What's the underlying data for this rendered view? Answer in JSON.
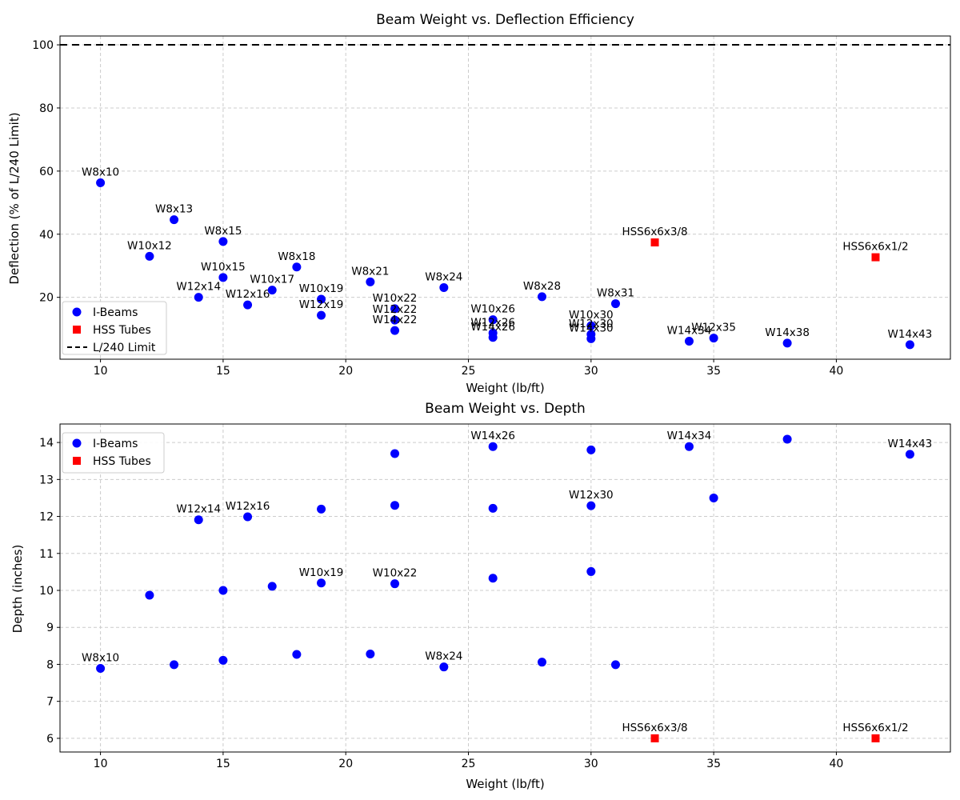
{
  "figure": {
    "background": "#ffffff",
    "colors": {
      "ibeam": "#0000ff",
      "hss": "#ff0000",
      "limit_line": "#000000",
      "grid": "#cccccc"
    }
  },
  "chart_data": [
    {
      "type": "scatter",
      "title": "Beam Weight vs. Deflection Efficiency",
      "xlabel": "Weight (lb/ft)",
      "ylabel": "Deflection (% of L/240 Limit)",
      "xlim": [
        8.35,
        44.65
      ],
      "ylim": [
        0.4,
        102.8
      ],
      "xticks": [
        10,
        15,
        20,
        25,
        30,
        35,
        40
      ],
      "yticks": [
        20,
        40,
        60,
        80,
        100
      ],
      "grid": true,
      "hline": {
        "y": 100,
        "label": "L/240 Limit",
        "color": "#000000",
        "style": "dashed"
      },
      "legend": {
        "position": "lower-left",
        "entries": [
          {
            "label": "I-Beams",
            "marker": "circle",
            "color": "#0000ff"
          },
          {
            "label": "HSS Tubes",
            "marker": "square",
            "color": "#ff0000"
          },
          {
            "label": "L/240 Limit",
            "marker": "dashed-line",
            "color": "#000000"
          }
        ]
      },
      "series": [
        {
          "name": "I-Beams",
          "marker": "circle",
          "color": "#0000ff",
          "points": [
            {
              "label": "W8x10",
              "x": 10,
              "y": 56.3,
              "annotated": true
            },
            {
              "label": "W10x12",
              "x": 12,
              "y": 33.0,
              "annotated": true
            },
            {
              "label": "W8x13",
              "x": 13,
              "y": 44.6,
              "annotated": true
            },
            {
              "label": "W12x14",
              "x": 14,
              "y": 20.0,
              "annotated": true
            },
            {
              "label": "W8x15",
              "x": 15,
              "y": 37.7,
              "annotated": true
            },
            {
              "label": "W10x15",
              "x": 15,
              "y": 26.3,
              "annotated": true
            },
            {
              "label": "W12x16",
              "x": 16,
              "y": 17.6,
              "annotated": true
            },
            {
              "label": "W10x17",
              "x": 17,
              "y": 22.3,
              "annotated": true
            },
            {
              "label": "W8x18",
              "x": 18,
              "y": 29.6,
              "annotated": true
            },
            {
              "label": "W10x19",
              "x": 19,
              "y": 19.4,
              "annotated": true
            },
            {
              "label": "W12x19",
              "x": 19,
              "y": 14.3,
              "annotated": true
            },
            {
              "label": "W8x21",
              "x": 21,
              "y": 24.9,
              "annotated": true
            },
            {
              "label": "W10x22",
              "x": 22,
              "y": 16.4,
              "annotated": true
            },
            {
              "label": "W12x22",
              "x": 22,
              "y": 12.8,
              "annotated": true
            },
            {
              "label": "W14x22",
              "x": 22,
              "y": 9.5,
              "annotated": true
            },
            {
              "label": "W8x24",
              "x": 24,
              "y": 23.1,
              "annotated": true
            },
            {
              "label": "W10x26",
              "x": 26,
              "y": 12.9,
              "annotated": true
            },
            {
              "label": "W12x26",
              "x": 26,
              "y": 8.7,
              "annotated": true
            },
            {
              "label": "W14x26",
              "x": 26,
              "y": 7.3,
              "annotated": true
            },
            {
              "label": "W8x28",
              "x": 28,
              "y": 20.2,
              "annotated": true
            },
            {
              "label": "W10x30",
              "x": 30,
              "y": 11.0,
              "annotated": true
            },
            {
              "label": "W12x30",
              "x": 30,
              "y": 8.3,
              "annotated": true
            },
            {
              "label": "W14x30",
              "x": 30,
              "y": 6.9,
              "annotated": true
            },
            {
              "label": "W8x31",
              "x": 31,
              "y": 18.0,
              "annotated": true
            },
            {
              "label": "W14x34",
              "x": 34,
              "y": 6.1,
              "annotated": true
            },
            {
              "label": "W12x35",
              "x": 35,
              "y": 7.1,
              "annotated": true
            },
            {
              "label": "W14x38",
              "x": 38,
              "y": 5.5,
              "annotated": true
            },
            {
              "label": "W14x43",
              "x": 43,
              "y": 5.0,
              "annotated": true
            }
          ]
        },
        {
          "name": "HSS Tubes",
          "marker": "square",
          "color": "#ff0000",
          "points": [
            {
              "label": "HSS6x6x3/8",
              "x": 32.6,
              "y": 37.4,
              "annotated": true
            },
            {
              "label": "HSS6x6x1/2",
              "x": 41.6,
              "y": 32.7,
              "annotated": true
            }
          ]
        }
      ]
    },
    {
      "type": "scatter",
      "title": "Beam Weight vs. Depth",
      "xlabel": "Weight (lb/ft)",
      "ylabel": "Depth (inches)",
      "xlim": [
        8.35,
        44.65
      ],
      "ylim": [
        5.63,
        14.5
      ],
      "xticks": [
        10,
        15,
        20,
        25,
        30,
        35,
        40
      ],
      "yticks": [
        6,
        7,
        8,
        9,
        10,
        11,
        12,
        13,
        14
      ],
      "grid": true,
      "hline": null,
      "legend": {
        "position": "upper-left",
        "entries": [
          {
            "label": "I-Beams",
            "marker": "circle",
            "color": "#0000ff"
          },
          {
            "label": "HSS Tubes",
            "marker": "square",
            "color": "#ff0000"
          }
        ]
      },
      "series": [
        {
          "name": "I-Beams",
          "marker": "circle",
          "color": "#0000ff",
          "points": [
            {
              "label": "W8x10",
              "x": 10,
              "y": 7.89,
              "annotated": true
            },
            {
              "label": "W10x12",
              "x": 12,
              "y": 9.87,
              "annotated": false
            },
            {
              "label": "W8x13",
              "x": 13,
              "y": 7.99,
              "annotated": false
            },
            {
              "label": "W12x14",
              "x": 14,
              "y": 11.91,
              "annotated": true
            },
            {
              "label": "W8x15",
              "x": 15,
              "y": 8.11,
              "annotated": false
            },
            {
              "label": "W10x15",
              "x": 15,
              "y": 10.0,
              "annotated": false
            },
            {
              "label": "W12x16",
              "x": 16,
              "y": 11.99,
              "annotated": true
            },
            {
              "label": "W10x17",
              "x": 17,
              "y": 10.11,
              "annotated": false
            },
            {
              "label": "W8x18",
              "x": 18,
              "y": 8.27,
              "annotated": false
            },
            {
              "label": "W10x19",
              "x": 19,
              "y": 10.2,
              "annotated": true
            },
            {
              "label": "W12x19",
              "x": 19,
              "y": 12.2,
              "annotated": false
            },
            {
              "label": "W8x21",
              "x": 21,
              "y": 8.28,
              "annotated": false
            },
            {
              "label": "W10x22",
              "x": 22,
              "y": 10.18,
              "annotated": true
            },
            {
              "label": "W12x22",
              "x": 22,
              "y": 12.3,
              "annotated": false
            },
            {
              "label": "W14x22",
              "x": 22,
              "y": 13.7,
              "annotated": false
            },
            {
              "label": "W8x24",
              "x": 24,
              "y": 7.93,
              "annotated": true
            },
            {
              "label": "W10x26",
              "x": 26,
              "y": 10.33,
              "annotated": false
            },
            {
              "label": "W12x26",
              "x": 26,
              "y": 12.22,
              "annotated": false
            },
            {
              "label": "W14x26",
              "x": 26,
              "y": 13.89,
              "annotated": true
            },
            {
              "label": "W8x28",
              "x": 28,
              "y": 8.06,
              "annotated": false
            },
            {
              "label": "W10x30",
              "x": 30,
              "y": 10.51,
              "annotated": false
            },
            {
              "label": "W12x30",
              "x": 30,
              "y": 12.29,
              "annotated": true
            },
            {
              "label": "W14x30",
              "x": 30,
              "y": 13.8,
              "annotated": false
            },
            {
              "label": "W8x31",
              "x": 31,
              "y": 7.99,
              "annotated": false
            },
            {
              "label": "W14x34",
              "x": 34,
              "y": 13.89,
              "annotated": true
            },
            {
              "label": "W12x35",
              "x": 35,
              "y": 12.5,
              "annotated": false
            },
            {
              "label": "W14x38",
              "x": 38,
              "y": 14.09,
              "annotated": false
            },
            {
              "label": "W14x43",
              "x": 43,
              "y": 13.68,
              "annotated": true
            }
          ]
        },
        {
          "name": "HSS Tubes",
          "marker": "square",
          "color": "#ff0000",
          "points": [
            {
              "label": "HSS6x6x3/8",
              "x": 32.6,
              "y": 6.0,
              "annotated": true
            },
            {
              "label": "HSS6x6x1/2",
              "x": 41.6,
              "y": 6.0,
              "annotated": true
            }
          ]
        }
      ]
    }
  ]
}
